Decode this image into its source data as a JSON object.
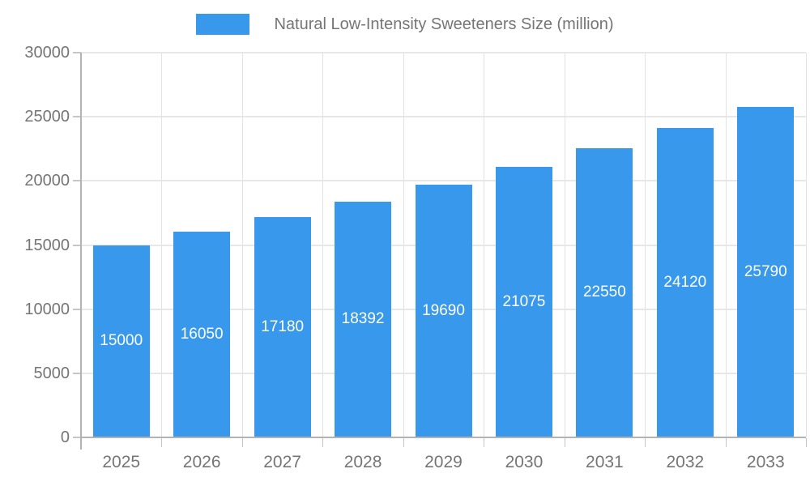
{
  "chart_data": {
    "type": "bar",
    "title": "Natural Low-Intensity Sweeteners Size (million)",
    "legend_entries": [
      "Natural Low-Intensity Sweeteners Size (million)"
    ],
    "legend_position": "top",
    "categories": [
      "2025",
      "2026",
      "2027",
      "2028",
      "2029",
      "2030",
      "2031",
      "2032",
      "2033"
    ],
    "series": [
      {
        "name": "Natural Low-Intensity Sweeteners Size (million)",
        "values": [
          15000,
          16050,
          17180,
          18392,
          19690,
          21075,
          22550,
          24120,
          25790
        ]
      }
    ],
    "bar_value_labels": [
      "15000",
      "16050",
      "17180",
      "18392",
      "19690",
      "21075",
      "22550",
      "24120",
      "25790"
    ],
    "xlabel": "",
    "ylabel": "",
    "ylim": [
      0,
      30000
    ],
    "ytick_step": 5000,
    "ytick_labels": [
      "0",
      "5000",
      "10000",
      "15000",
      "20000",
      "25000",
      "30000"
    ],
    "grid": true,
    "colors": {
      "bar": "#3899ec",
      "bar_value_label": "#ffffff",
      "axis_label": "#757575",
      "axis_line": "#b3b3b3",
      "gridline": "#e7e7e7",
      "background": "#ffffff"
    }
  }
}
